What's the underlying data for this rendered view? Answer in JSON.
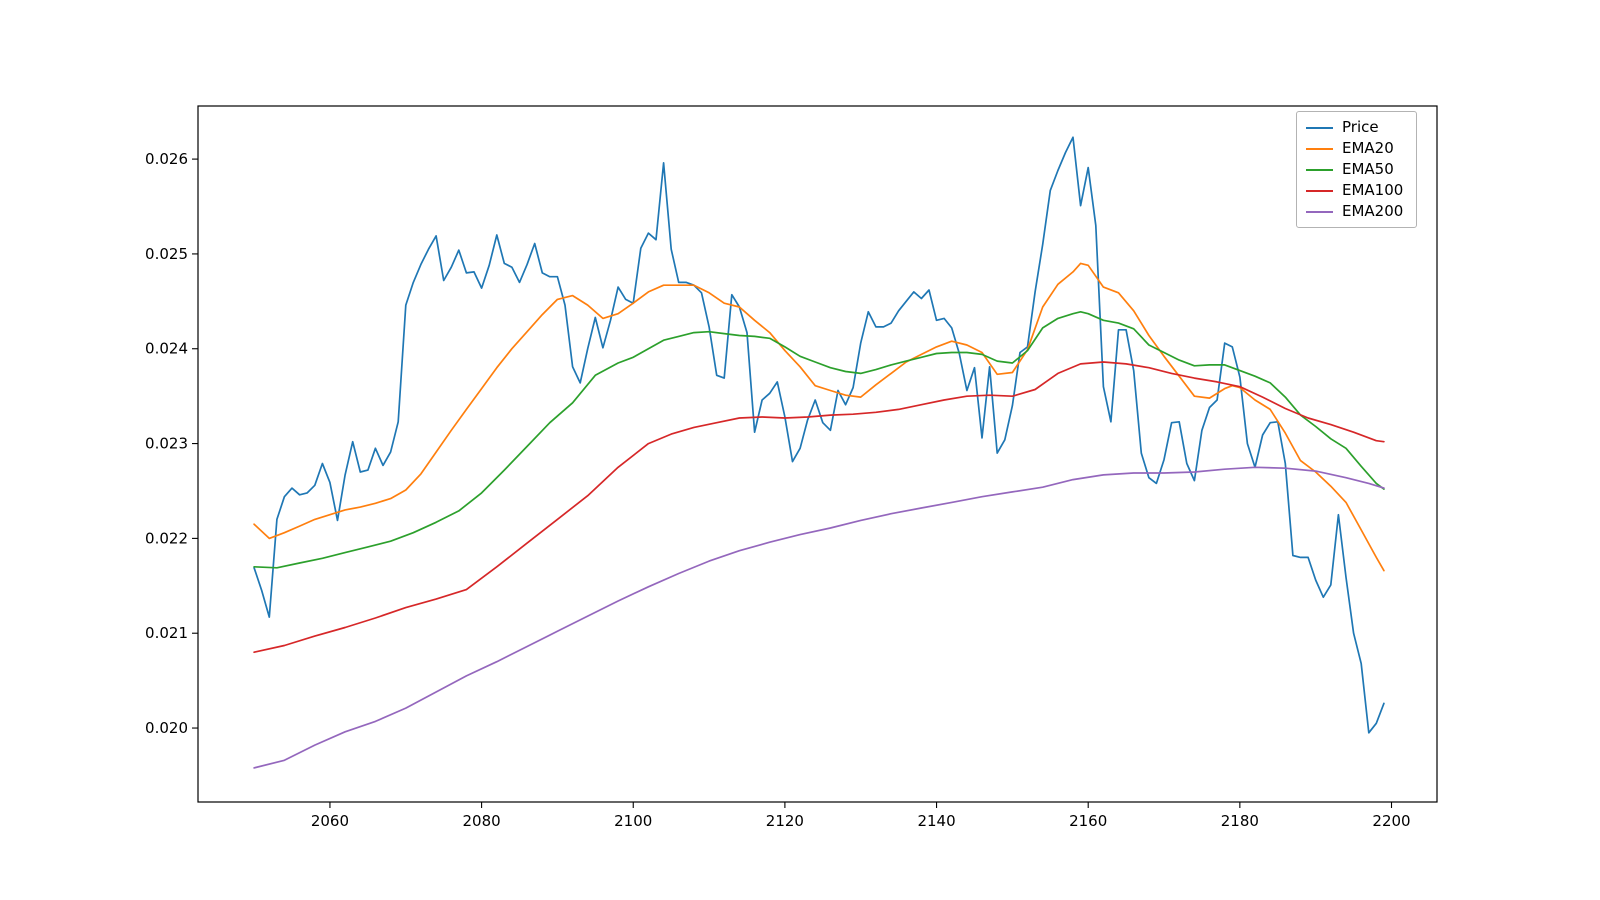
{
  "figure": {
    "background": "#ffffff"
  },
  "chart_data": {
    "type": "line",
    "title": "",
    "xlabel": "",
    "ylabel": "",
    "grid": false,
    "legend_position": "upper right",
    "xlim": [
      2042.6,
      2206.0
    ],
    "ylim": [
      0.01922,
      0.02656
    ],
    "x_ticks": [
      2060,
      2080,
      2100,
      2120,
      2140,
      2160,
      2180,
      2200
    ],
    "y_ticks": [
      0.02,
      0.021,
      0.022,
      0.023,
      0.024,
      0.025,
      0.026
    ],
    "y_tick_labels": [
      "0.020",
      "0.021",
      "0.022",
      "0.023",
      "0.024",
      "0.025",
      "0.026"
    ],
    "series": [
      {
        "name": "Price",
        "color": "#1f77b4",
        "x": [
          2050,
          2051,
          2052,
          2053,
          2054,
          2055,
          2056,
          2057,
          2058,
          2059,
          2060,
          2061,
          2062,
          2063,
          2064,
          2065,
          2066,
          2067,
          2068,
          2069,
          2070,
          2071,
          2072,
          2073,
          2074,
          2075,
          2076,
          2077,
          2078,
          2079,
          2080,
          2081,
          2082,
          2083,
          2084,
          2085,
          2086,
          2087,
          2088,
          2089,
          2090,
          2091,
          2092,
          2093,
          2094,
          2095,
          2096,
          2097,
          2098,
          2099,
          2100,
          2101,
          2102,
          2103,
          2104,
          2105,
          2106,
          2107,
          2108,
          2109,
          2110,
          2111,
          2112,
          2113,
          2114,
          2115,
          2116,
          2117,
          2118,
          2119,
          2120,
          2121,
          2122,
          2123,
          2124,
          2125,
          2126,
          2127,
          2128,
          2129,
          2130,
          2131,
          2132,
          2133,
          2134,
          2135,
          2136,
          2137,
          2138,
          2139,
          2140,
          2141,
          2142,
          2143,
          2144,
          2145,
          2146,
          2147,
          2148,
          2149,
          2150,
          2151,
          2152,
          2153,
          2154,
          2155,
          2156,
          2157,
          2158,
          2159,
          2160,
          2161,
          2162,
          2163,
          2164,
          2165,
          2166,
          2167,
          2168,
          2169,
          2170,
          2171,
          2172,
          2173,
          2174,
          2175,
          2176,
          2177,
          2178,
          2179,
          2180,
          2181,
          2182,
          2183,
          2184,
          2185,
          2186,
          2187,
          2188,
          2189,
          2190,
          2191,
          2192,
          2193,
          2194,
          2195,
          2196,
          2197,
          2198,
          2199
        ],
        "y": [
          0.02169,
          0.02145,
          0.02117,
          0.0222,
          0.02244,
          0.02253,
          0.02246,
          0.02248,
          0.02256,
          0.02279,
          0.02259,
          0.02219,
          0.02267,
          0.02302,
          0.0227,
          0.02272,
          0.02295,
          0.02277,
          0.02291,
          0.02323,
          0.02446,
          0.0247,
          0.02489,
          0.02505,
          0.02519,
          0.02472,
          0.02486,
          0.02504,
          0.0248,
          0.02481,
          0.02464,
          0.02488,
          0.0252,
          0.0249,
          0.02486,
          0.0247,
          0.02489,
          0.02511,
          0.0248,
          0.02476,
          0.02476,
          0.02446,
          0.02381,
          0.02364,
          0.024,
          0.02433,
          0.02401,
          0.0243,
          0.02465,
          0.02452,
          0.02448,
          0.02506,
          0.02522,
          0.02515,
          0.02596,
          0.02505,
          0.0247,
          0.0247,
          0.02467,
          0.02459,
          0.02423,
          0.02372,
          0.02369,
          0.02457,
          0.02444,
          0.02417,
          0.02312,
          0.02346,
          0.02353,
          0.02365,
          0.02328,
          0.02281,
          0.02295,
          0.02325,
          0.02346,
          0.02322,
          0.02314,
          0.02356,
          0.02341,
          0.02359,
          0.02406,
          0.02439,
          0.02423,
          0.02423,
          0.02427,
          0.0244,
          0.0245,
          0.0246,
          0.02453,
          0.02462,
          0.0243,
          0.02432,
          0.02422,
          0.02395,
          0.02356,
          0.0238,
          0.02306,
          0.02381,
          0.0229,
          0.02304,
          0.0234,
          0.02396,
          0.02402,
          0.0246,
          0.0251,
          0.02567,
          0.02588,
          0.02607,
          0.02623,
          0.02551,
          0.02591,
          0.0253,
          0.0236,
          0.02323,
          0.0242,
          0.0242,
          0.02377,
          0.0229,
          0.02264,
          0.02258,
          0.02283,
          0.02322,
          0.02323,
          0.02279,
          0.02261,
          0.02314,
          0.02338,
          0.02346,
          0.02406,
          0.02402,
          0.0237,
          0.023,
          0.02275,
          0.02309,
          0.02322,
          0.02323,
          0.02279,
          0.02182,
          0.0218,
          0.0218,
          0.02156,
          0.02138,
          0.02151,
          0.02225,
          0.02159,
          0.021,
          0.02068,
          0.01995,
          0.02005,
          0.02026
        ]
      },
      {
        "name": "EMA20",
        "color": "#ff7f0e",
        "x": [
          2050,
          2052,
          2054,
          2056,
          2058,
          2060,
          2062,
          2064,
          2066,
          2068,
          2070,
          2072,
          2074,
          2076,
          2078,
          2080,
          2082,
          2084,
          2086,
          2088,
          2090,
          2092,
          2094,
          2096,
          2098,
          2100,
          2102,
          2104,
          2106,
          2108,
          2110,
          2112,
          2114,
          2116,
          2118,
          2120,
          2122,
          2124,
          2126,
          2128,
          2130,
          2132,
          2134,
          2136,
          2138,
          2140,
          2142,
          2144,
          2146,
          2148,
          2150,
          2152,
          2154,
          2156,
          2158,
          2159,
          2160,
          2162,
          2164,
          2166,
          2168,
          2170,
          2172,
          2174,
          2176,
          2178,
          2179,
          2180,
          2182,
          2184,
          2186,
          2188,
          2190,
          2192,
          2194,
          2196,
          2198,
          2199
        ],
        "y": [
          0.02215,
          0.022,
          0.02206,
          0.02213,
          0.0222,
          0.02225,
          0.0223,
          0.02233,
          0.02237,
          0.02242,
          0.02251,
          0.02268,
          0.02291,
          0.02314,
          0.02336,
          0.02358,
          0.0238,
          0.024,
          0.02418,
          0.02436,
          0.02452,
          0.02456,
          0.02446,
          0.02432,
          0.02437,
          0.02448,
          0.0246,
          0.02467,
          0.02467,
          0.02467,
          0.02459,
          0.02448,
          0.02444,
          0.0243,
          0.02417,
          0.02398,
          0.02381,
          0.02361,
          0.02356,
          0.02351,
          0.02349,
          0.02362,
          0.02374,
          0.02386,
          0.02394,
          0.02402,
          0.02408,
          0.02404,
          0.02396,
          0.02373,
          0.02375,
          0.02399,
          0.02444,
          0.02468,
          0.02481,
          0.0249,
          0.02488,
          0.02465,
          0.02459,
          0.0244,
          0.02414,
          0.02392,
          0.02371,
          0.0235,
          0.02348,
          0.02358,
          0.02361,
          0.02359,
          0.02346,
          0.02336,
          0.02311,
          0.02282,
          0.0227,
          0.02255,
          0.02238,
          0.02209,
          0.0218,
          0.02166
        ]
      },
      {
        "name": "EMA50",
        "color": "#2ca02c",
        "x": [
          2050,
          2053,
          2056,
          2059,
          2062,
          2065,
          2068,
          2071,
          2074,
          2077,
          2080,
          2083,
          2086,
          2089,
          2092,
          2095,
          2098,
          2100,
          2102,
          2104,
          2106,
          2108,
          2110,
          2112,
          2114,
          2116,
          2118,
          2120,
          2122,
          2124,
          2126,
          2128,
          2130,
          2132,
          2134,
          2136,
          2138,
          2140,
          2142,
          2144,
          2146,
          2148,
          2150,
          2152,
          2154,
          2156,
          2158,
          2159,
          2160,
          2162,
          2164,
          2166,
          2168,
          2170,
          2172,
          2174,
          2176,
          2178,
          2180,
          2182,
          2184,
          2186,
          2188,
          2190,
          2192,
          2194,
          2196,
          2198,
          2199
        ],
        "y": [
          0.0217,
          0.02169,
          0.02174,
          0.02179,
          0.02185,
          0.02191,
          0.02197,
          0.02206,
          0.02217,
          0.02229,
          0.02248,
          0.02272,
          0.02297,
          0.02322,
          0.02343,
          0.02372,
          0.02385,
          0.02391,
          0.024,
          0.02409,
          0.02413,
          0.02417,
          0.02418,
          0.02416,
          0.02414,
          0.02413,
          0.02411,
          0.02402,
          0.02392,
          0.02386,
          0.0238,
          0.02376,
          0.02374,
          0.02378,
          0.02383,
          0.02387,
          0.02391,
          0.02395,
          0.02396,
          0.02396,
          0.02394,
          0.02387,
          0.02385,
          0.02398,
          0.02422,
          0.02432,
          0.02437,
          0.02439,
          0.02437,
          0.0243,
          0.02427,
          0.02421,
          0.02404,
          0.02396,
          0.02388,
          0.02382,
          0.02383,
          0.02383,
          0.02377,
          0.02371,
          0.02364,
          0.02349,
          0.0233,
          0.02318,
          0.02305,
          0.02295,
          0.02276,
          0.02258,
          0.02252
        ]
      },
      {
        "name": "EMA100",
        "color": "#d62728",
        "x": [
          2050,
          2054,
          2058,
          2062,
          2066,
          2070,
          2074,
          2078,
          2082,
          2086,
          2090,
          2094,
          2098,
          2102,
          2105,
          2108,
          2111,
          2114,
          2117,
          2120,
          2123,
          2126,
          2129,
          2132,
          2135,
          2138,
          2141,
          2144,
          2147,
          2150,
          2153,
          2156,
          2159,
          2162,
          2165,
          2168,
          2171,
          2174,
          2177,
          2180,
          2183,
          2186,
          2189,
          2192,
          2195,
          2198,
          2199
        ],
        "y": [
          0.0208,
          0.02087,
          0.02097,
          0.02106,
          0.02116,
          0.02127,
          0.02136,
          0.02146,
          0.0217,
          0.02195,
          0.0222,
          0.02245,
          0.02275,
          0.023,
          0.0231,
          0.02317,
          0.02322,
          0.02327,
          0.02328,
          0.02327,
          0.02328,
          0.0233,
          0.02331,
          0.02333,
          0.02336,
          0.02341,
          0.02346,
          0.0235,
          0.02351,
          0.0235,
          0.02357,
          0.02374,
          0.02384,
          0.02386,
          0.02384,
          0.0238,
          0.02374,
          0.02369,
          0.02365,
          0.0236,
          0.02349,
          0.02337,
          0.02327,
          0.0232,
          0.02312,
          0.02303,
          0.02302
        ]
      },
      {
        "name": "EMA200",
        "color": "#9467bd",
        "x": [
          2050,
          2054,
          2058,
          2062,
          2066,
          2070,
          2074,
          2078,
          2082,
          2086,
          2090,
          2094,
          2098,
          2102,
          2106,
          2110,
          2114,
          2118,
          2122,
          2126,
          2130,
          2134,
          2138,
          2142,
          2146,
          2150,
          2154,
          2158,
          2162,
          2166,
          2170,
          2174,
          2178,
          2182,
          2186,
          2190,
          2194,
          2197,
          2199
        ],
        "y": [
          0.01958,
          0.01966,
          0.01982,
          0.01996,
          0.02007,
          0.02021,
          0.02038,
          0.02055,
          0.0207,
          0.02086,
          0.02102,
          0.02118,
          0.02134,
          0.02149,
          0.02163,
          0.02176,
          0.02187,
          0.02196,
          0.02204,
          0.02211,
          0.02219,
          0.02226,
          0.02232,
          0.02238,
          0.02244,
          0.02249,
          0.02254,
          0.02262,
          0.02267,
          0.02269,
          0.02269,
          0.0227,
          0.02273,
          0.02275,
          0.02274,
          0.02271,
          0.02264,
          0.02258,
          0.02253
        ]
      }
    ]
  }
}
